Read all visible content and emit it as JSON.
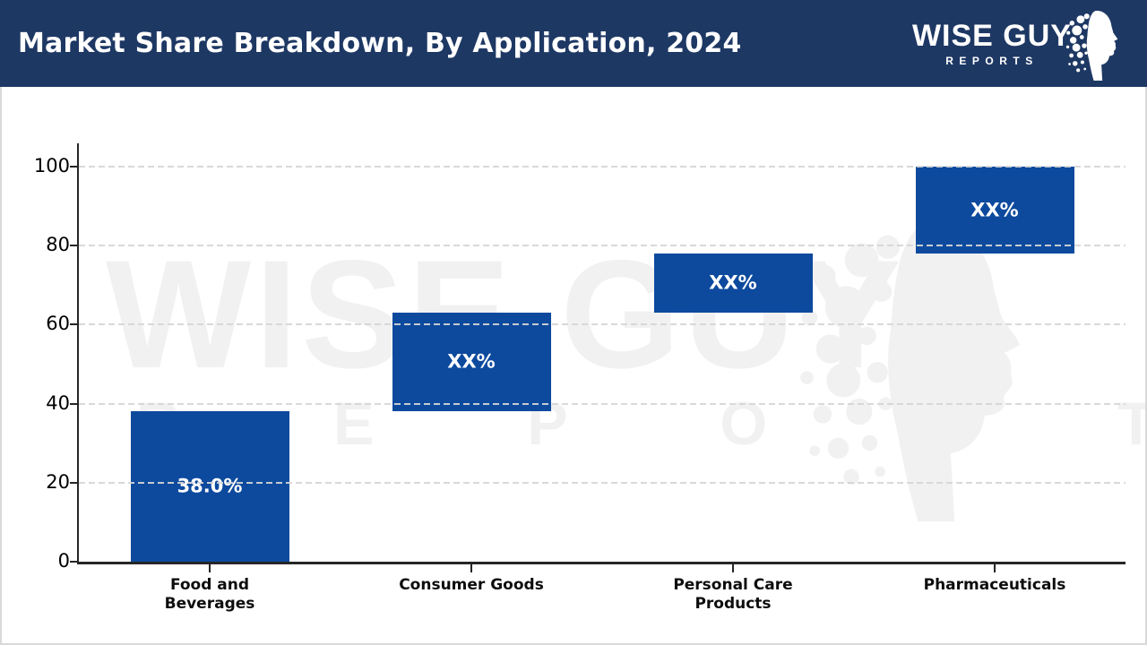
{
  "header": {
    "title": "Market Share Breakdown, By Application, 2024",
    "logo": {
      "line1": "WISE GUY",
      "line2": "REPORTS"
    }
  },
  "watermark": {
    "line1": "WISE GUY",
    "line2": "R E P O R T S"
  },
  "chart_data": {
    "type": "bar",
    "subtype": "waterfall",
    "title": "Market Share Breakdown, By Application, 2024",
    "categories": [
      "Food and Beverages",
      "Consumer Goods",
      "Personal Care Products",
      "Pharmaceuticals"
    ],
    "segments": [
      {
        "category": "Food and Beverages",
        "start": 0,
        "end": 38,
        "value": 38.0,
        "label": "38.0%"
      },
      {
        "category": "Consumer Goods",
        "start": 38,
        "end": 63,
        "value": 25,
        "label": "XX%"
      },
      {
        "category": "Personal Care Products",
        "start": 63,
        "end": 78,
        "value": 15,
        "label": "XX%"
      },
      {
        "category": "Pharmaceuticals",
        "start": 78,
        "end": 100,
        "value": 22,
        "label": "XX%"
      }
    ],
    "xlabel": "",
    "ylabel": "",
    "yticks": [
      0,
      20,
      40,
      60,
      80,
      100
    ],
    "ylim": [
      0,
      105.9
    ],
    "grid": "horizontal-dashed-over-bars",
    "legend": "none",
    "colors": {
      "bar": "#0d4a9e",
      "bar_label": "#ffffff",
      "grid": "#d6d6d6",
      "axis": "#262626",
      "tick_label": "#000000",
      "header_bg": "#1e3864",
      "watermark": "#f1f1f1"
    }
  }
}
